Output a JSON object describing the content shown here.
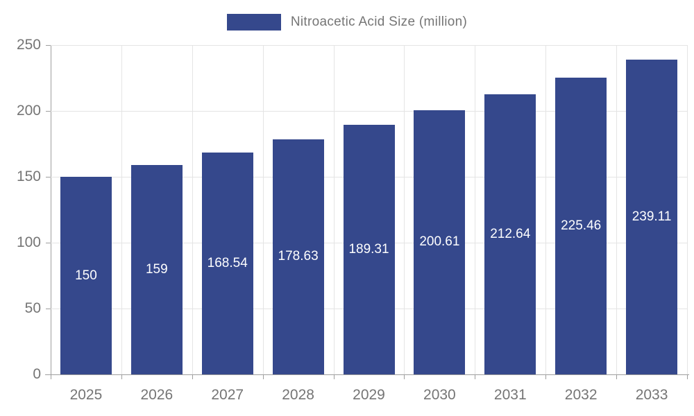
{
  "chart_data": {
    "type": "bar",
    "title": "",
    "legend": {
      "label": "Nitroacetic Acid Size (million)",
      "position": "top-center"
    },
    "categories": [
      "2025",
      "2026",
      "2027",
      "2028",
      "2029",
      "2030",
      "2031",
      "2032",
      "2033"
    ],
    "series": [
      {
        "name": "Nitroacetic Acid Size (million)",
        "values": [
          150,
          159,
          168.54,
          178.63,
          189.31,
          200.61,
          212.64,
          225.46,
          239.11
        ],
        "value_labels": [
          "150",
          "159",
          "168.54",
          "178.63",
          "189.31",
          "200.61",
          "212.64",
          "225.46",
          "239.11"
        ]
      }
    ],
    "xlabel": "",
    "ylabel": "",
    "ylim": [
      0,
      250
    ],
    "yticks": [
      0,
      50,
      100,
      150,
      200,
      250
    ],
    "grid": true,
    "colors": {
      "bar": "#35488c",
      "value_label": "#ffffff",
      "tick_label": "#757575",
      "legend_label": "#757575",
      "gridline": "#e4e4e4",
      "axis_line": "#9e9e9e",
      "background": "#ffffff"
    }
  }
}
